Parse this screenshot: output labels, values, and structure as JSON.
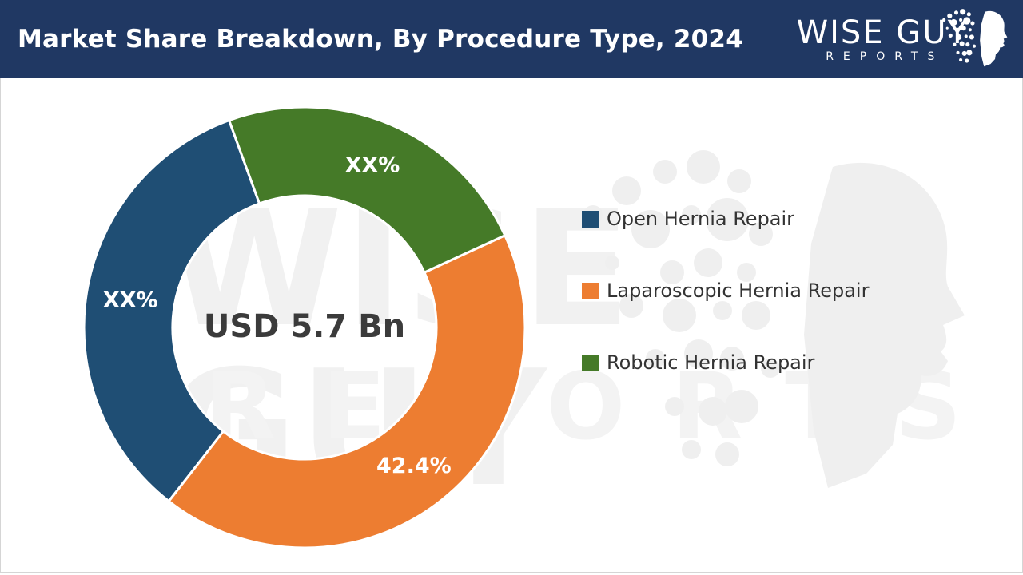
{
  "header": {
    "title": "Market Share Breakdown, By Procedure Type, 2024",
    "bg_color": "#203863",
    "logo": {
      "line1": "WISE GUY",
      "line2": "REPORTS"
    }
  },
  "chart_data": {
    "type": "pie",
    "subtype": "donut",
    "title": "Market Share Breakdown, By Procedure Type, 2024",
    "center_label": "USD 5.7 Bn",
    "start_angle_deg": 110,
    "direction": "counterclockwise",
    "inner_radius_ratio": 0.598,
    "legend_position": "right",
    "segments": [
      {
        "name": "Open Hernia Repair",
        "display_label": "XX%",
        "value_pct": 33.9,
        "color": "#1F4E74"
      },
      {
        "name": "Laparoscopic Hernia Repair",
        "display_label": "42.4%",
        "value_pct": 42.4,
        "color": "#ED7D31"
      },
      {
        "name": "Robotic Hernia Repair",
        "display_label": "XX%",
        "value_pct": 23.7,
        "color": "#457A28"
      }
    ]
  },
  "watermark": {
    "line1": "WISE GUY",
    "line2": "REPORTS"
  },
  "colors": {
    "header_bg": "#203863",
    "frame_border": "#D5D5D5",
    "center_text": "#3B3B3B",
    "legend_text": "#333333",
    "watermark": "#F1F1F1"
  }
}
